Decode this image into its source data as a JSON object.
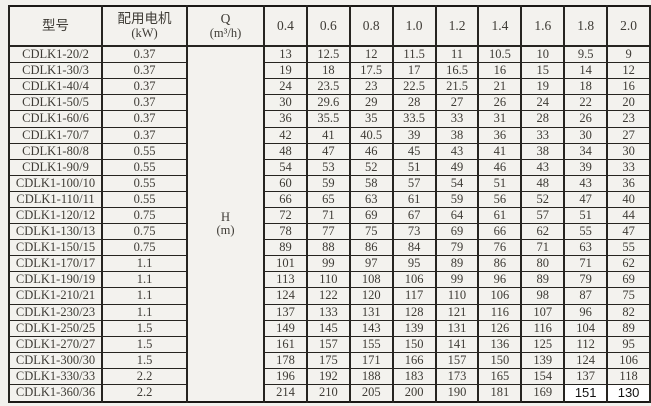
{
  "table": {
    "header": {
      "model_label": "型号",
      "motor_label": "配用电机",
      "motor_unit": "(kW)",
      "flow_symbol": "Q",
      "flow_unit": "(m³/h)",
      "flow_rates": [
        "0.4",
        "0.6",
        "0.8",
        "1.0",
        "1.2",
        "1.4",
        "1.6",
        "1.8",
        "2.0"
      ]
    },
    "head_column": {
      "symbol": "H",
      "unit": "(m)"
    },
    "rows": [
      {
        "model": "CDLK1-20/2",
        "kw": "0.37",
        "values": [
          "13",
          "12.5",
          "12",
          "11.5",
          "11",
          "10.5",
          "10",
          "9.5",
          "9"
        ]
      },
      {
        "model": "CDLK1-30/3",
        "kw": "0.37",
        "values": [
          "19",
          "18",
          "17.5",
          "17",
          "16.5",
          "16",
          "15",
          "14",
          "12"
        ]
      },
      {
        "model": "CDLK1-40/4",
        "kw": "0.37",
        "values": [
          "24",
          "23.5",
          "23",
          "22.5",
          "21.5",
          "21",
          "19",
          "18",
          "16"
        ]
      },
      {
        "model": "CDLK1-50/5",
        "kw": "0.37",
        "values": [
          "30",
          "29.6",
          "29",
          "28",
          "27",
          "26",
          "24",
          "22",
          "20"
        ]
      },
      {
        "model": "CDLK1-60/6",
        "kw": "0.37",
        "values": [
          "36",
          "35.5",
          "35",
          "33.5",
          "33",
          "31",
          "28",
          "26",
          "23"
        ]
      },
      {
        "model": "CDLK1-70/7",
        "kw": "0.37",
        "values": [
          "42",
          "41",
          "40.5",
          "39",
          "38",
          "36",
          "33",
          "30",
          "27"
        ]
      },
      {
        "model": "CDLK1-80/8",
        "kw": "0.55",
        "values": [
          "48",
          "47",
          "46",
          "45",
          "43",
          "41",
          "38",
          "34",
          "30"
        ]
      },
      {
        "model": "CDLK1-90/9",
        "kw": "0.55",
        "values": [
          "54",
          "53",
          "52",
          "51",
          "49",
          "46",
          "43",
          "39",
          "33"
        ]
      },
      {
        "model": "CDLK1-100/10",
        "kw": "0.55",
        "values": [
          "60",
          "59",
          "58",
          "57",
          "54",
          "51",
          "48",
          "43",
          "36"
        ]
      },
      {
        "model": "CDLK1-110/11",
        "kw": "0.55",
        "values": [
          "66",
          "65",
          "63",
          "61",
          "59",
          "56",
          "52",
          "47",
          "40"
        ]
      },
      {
        "model": "CDLK1-120/12",
        "kw": "0.75",
        "values": [
          "72",
          "71",
          "69",
          "67",
          "64",
          "61",
          "57",
          "51",
          "44"
        ]
      },
      {
        "model": "CDLK1-130/13",
        "kw": "0.75",
        "values": [
          "78",
          "77",
          "75",
          "73",
          "69",
          "66",
          "62",
          "55",
          "47"
        ]
      },
      {
        "model": "CDLK1-150/15",
        "kw": "0.75",
        "values": [
          "89",
          "88",
          "86",
          "84",
          "79",
          "76",
          "71",
          "63",
          "55"
        ]
      },
      {
        "model": "CDLK1-170/17",
        "kw": "1.1",
        "values": [
          "101",
          "99",
          "97",
          "95",
          "89",
          "86",
          "80",
          "71",
          "62"
        ]
      },
      {
        "model": "CDLK1-190/19",
        "kw": "1.1",
        "values": [
          "113",
          "110",
          "108",
          "106",
          "99",
          "96",
          "89",
          "79",
          "69"
        ]
      },
      {
        "model": "CDLK1-210/21",
        "kw": "1.1",
        "values": [
          "124",
          "122",
          "120",
          "117",
          "110",
          "106",
          "98",
          "87",
          "75"
        ]
      },
      {
        "model": "CDLK1-230/23",
        "kw": "1.1",
        "values": [
          "137",
          "133",
          "131",
          "128",
          "121",
          "116",
          "107",
          "96",
          "82"
        ]
      },
      {
        "model": "CDLK1-250/25",
        "kw": "1.5",
        "values": [
          "149",
          "145",
          "143",
          "139",
          "131",
          "126",
          "116",
          "104",
          "89"
        ]
      },
      {
        "model": "CDLK1-270/27",
        "kw": "1.5",
        "values": [
          "161",
          "157",
          "155",
          "150",
          "141",
          "136",
          "125",
          "112",
          "95"
        ]
      },
      {
        "model": "CDLK1-300/30",
        "kw": "1.5",
        "values": [
          "178",
          "175",
          "171",
          "166",
          "157",
          "150",
          "139",
          "124",
          "106"
        ]
      },
      {
        "model": "CDLK1-330/33",
        "kw": "2.2",
        "values": [
          "196",
          "192",
          "188",
          "183",
          "173",
          "165",
          "154",
          "137",
          "118"
        ]
      },
      {
        "model": "CDLK1-360/36",
        "kw": "2.2",
        "values": [
          "214",
          "210",
          "205",
          "200",
          "190",
          "181",
          "169",
          "151",
          "130"
        ]
      }
    ]
  }
}
